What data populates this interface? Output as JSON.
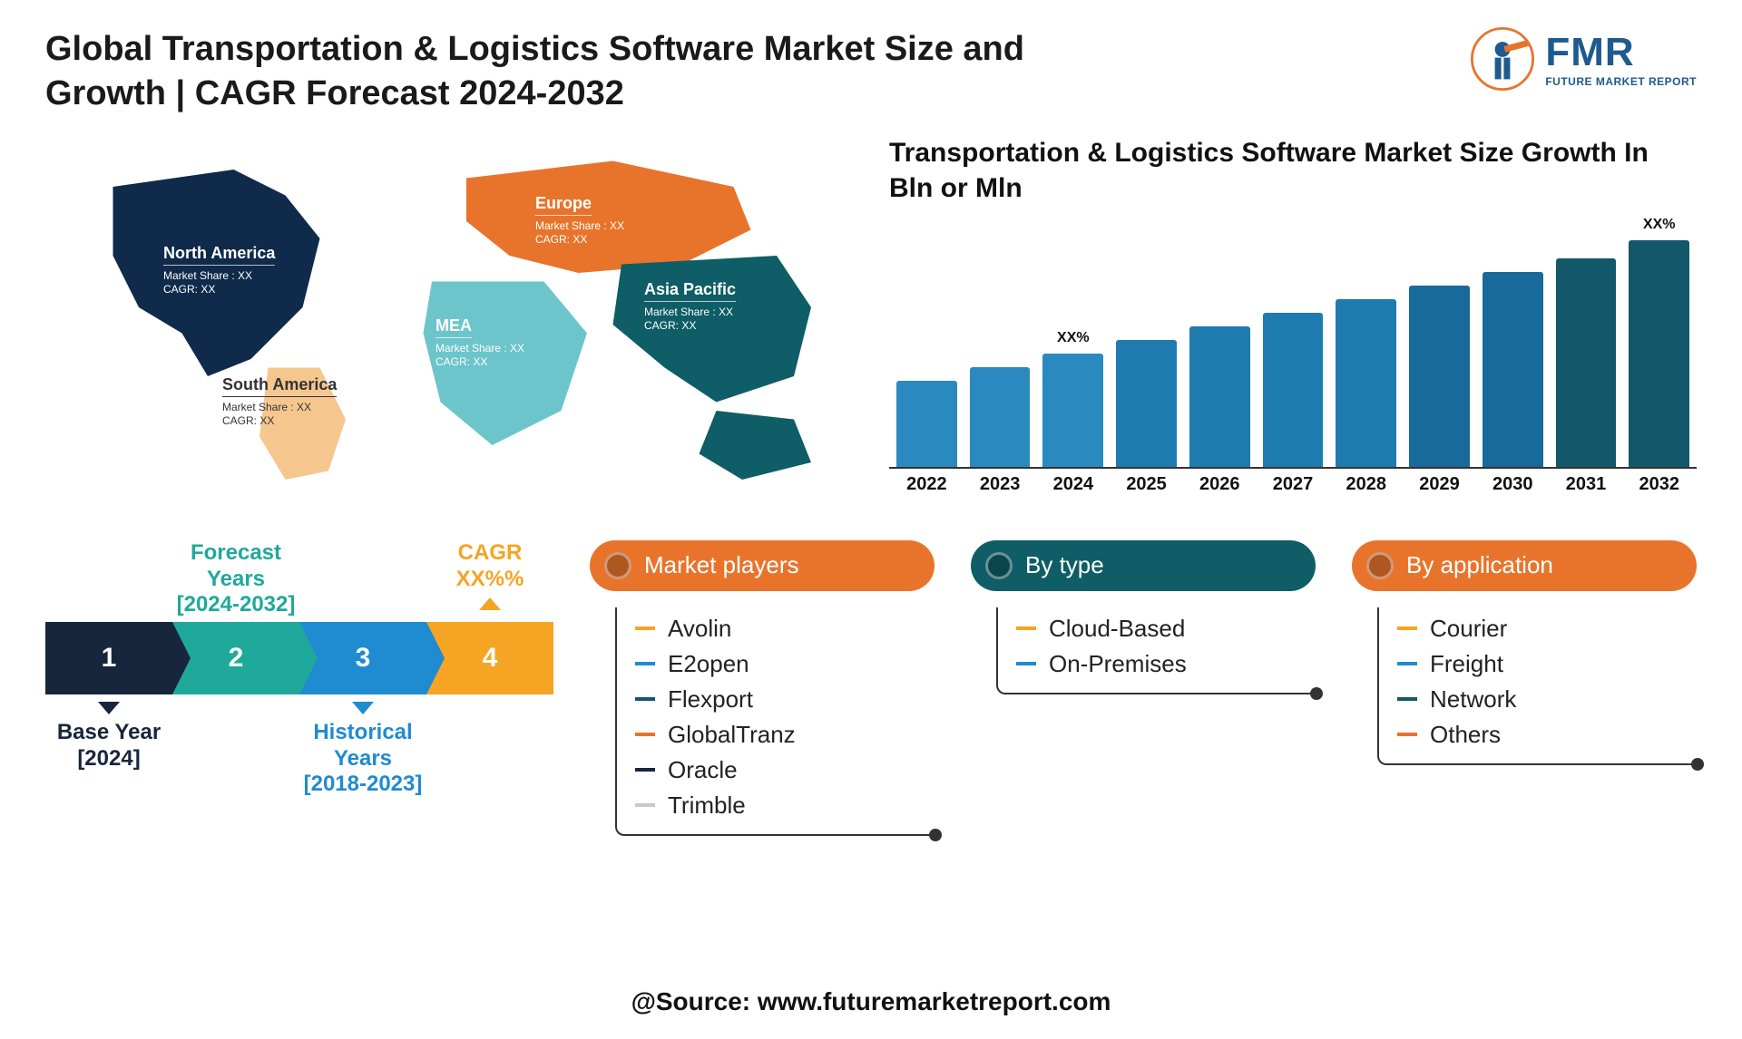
{
  "title": "Global Transportation & Logistics Software Market Size and Growth | CAGR Forecast 2024-2032",
  "logo": {
    "brand": "FMR",
    "tagline": "FUTURE MARKET REPORT"
  },
  "map": {
    "regions": [
      {
        "name": "North America",
        "share": "Market Share : XX",
        "cagr": "CAGR: XX",
        "color": "#0f2a4a"
      },
      {
        "name": "South America",
        "share": "Market Share : XX",
        "cagr": "CAGR: XX",
        "color": "#f5c78f"
      },
      {
        "name": "Europe",
        "share": "Market Share : XX",
        "cagr": "CAGR: XX",
        "color": "#e8742c"
      },
      {
        "name": "MEA",
        "share": "Market Share : XX",
        "cagr": "CAGR: XX",
        "color": "#6cc5cb"
      },
      {
        "name": "Asia Pacific",
        "share": "Market Share : XX",
        "cagr": "CAGR: XX",
        "color": "#0f5d66"
      }
    ]
  },
  "barChart": {
    "title": "Transportation & Logistics Software Market Size Growth In\nBln or Mln",
    "type": "bar",
    "years": [
      "2022",
      "2023",
      "2024",
      "2025",
      "2026",
      "2027",
      "2028",
      "2029",
      "2030",
      "2031",
      "2032"
    ],
    "values": [
      38,
      44,
      50,
      56,
      62,
      68,
      74,
      80,
      86,
      92,
      100
    ],
    "bar_colors": [
      "#2a8abf",
      "#2a8abf",
      "#2a8abf",
      "#1d7bb0",
      "#1d7bb0",
      "#1d7bb0",
      "#1d7bb0",
      "#176a99",
      "#176a99",
      "#13576b",
      "#13576b"
    ],
    "value_labels": {
      "2": "XX%",
      "10": "XX%"
    },
    "ylim": [
      0,
      100
    ],
    "background_color": "#ffffff",
    "axis_color": "#333333"
  },
  "timeline": {
    "steps": [
      "1",
      "2",
      "3",
      "4"
    ],
    "colors": [
      "#18263d",
      "#1fa99b",
      "#1f8bd1",
      "#f5a423"
    ],
    "top": [
      {
        "slot": 1,
        "label": "Forecast Years",
        "sub": "[2024-2032]",
        "color": "#1fa99b"
      },
      {
        "slot": 3,
        "label": "CAGR",
        "sub": "XX%%",
        "color": "#f5a423"
      }
    ],
    "bottom": [
      {
        "slot": 0,
        "label": "Base Year",
        "sub": "[2024]",
        "color": "#18263d"
      },
      {
        "slot": 2,
        "label": "Historical Years",
        "sub": "[2018-2023]",
        "color": "#1f8bd1"
      }
    ]
  },
  "categories": [
    {
      "title": "Market players",
      "pill_color": "#e8742c",
      "items": [
        {
          "label": "Avolin",
          "tick": "#f5a423"
        },
        {
          "label": "E2open",
          "tick": "#1f8bd1"
        },
        {
          "label": "Flexport",
          "tick": "#13576b"
        },
        {
          "label": "GlobalTranz",
          "tick": "#e8742c"
        },
        {
          "label": "Oracle",
          "tick": "#18263d"
        },
        {
          "label": "Trimble",
          "tick": "#c9c9c9"
        }
      ]
    },
    {
      "title": "By type",
      "pill_color": "#0f5d66",
      "items": [
        {
          "label": "Cloud-Based",
          "tick": "#f5a423"
        },
        {
          "label": "On-Premises",
          "tick": "#1f8bd1"
        }
      ]
    },
    {
      "title": "By application",
      "pill_color": "#e8742c",
      "items": [
        {
          "label": "Courier",
          "tick": "#f5a423"
        },
        {
          "label": "Freight",
          "tick": "#1f8bd1"
        },
        {
          "label": "Network",
          "tick": "#13576b"
        },
        {
          "label": "Others",
          "tick": "#e8742c"
        }
      ]
    }
  ],
  "source": "@Source: www.futuremarketreport.com"
}
